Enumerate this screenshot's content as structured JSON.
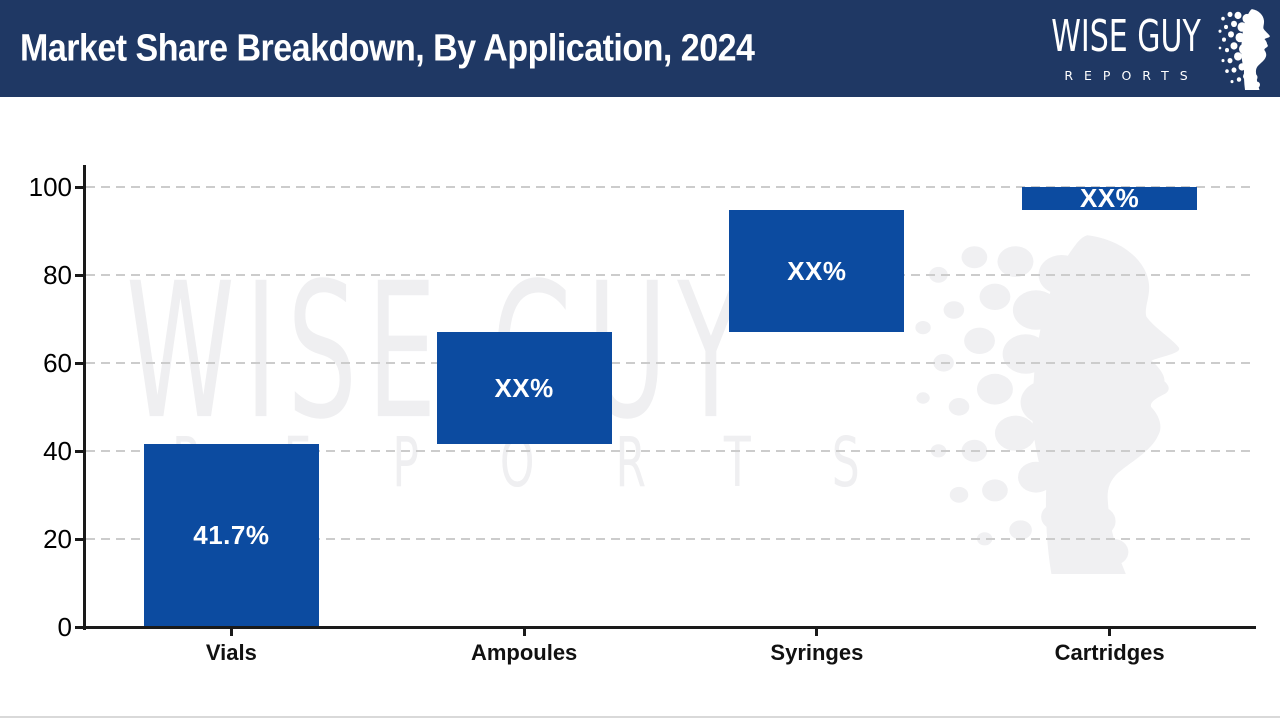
{
  "header": {
    "title": "Market Share Breakdown, By Application, 2024",
    "bg_color": "#1f3864"
  },
  "brand": {
    "name": "WISE GUY",
    "subname": "REPORTS"
  },
  "watermark": {
    "line1": "WISE GUY",
    "line2": "REPORTS"
  },
  "chart_data": {
    "type": "bar",
    "subtype": "waterfall",
    "title": "Market Share Breakdown, By Application, 2024",
    "categories": [
      "Vials",
      "Ampoules",
      "Syringes",
      "Cartridges"
    ],
    "series": [
      {
        "name": "Market share (%)",
        "segments": [
          {
            "category": "Vials",
            "start": 0,
            "end": 41.7,
            "label": "41.7%"
          },
          {
            "category": "Ampoules",
            "start": 41.7,
            "end": 67,
            "label": "XX%"
          },
          {
            "category": "Syringes",
            "start": 67,
            "end": 94.8,
            "label": "XX%"
          },
          {
            "category": "Cartridges",
            "start": 94.8,
            "end": 100,
            "label": "XX%"
          }
        ]
      }
    ],
    "xlabel": "",
    "ylabel": "",
    "ylim": [
      0,
      105
    ],
    "yticks": [
      0,
      20,
      40,
      60,
      80,
      100
    ],
    "grid": "horizontal-dashed",
    "legend": "none",
    "bar_color": "#0c4ba0",
    "bar_label_color": "#ffffff"
  }
}
